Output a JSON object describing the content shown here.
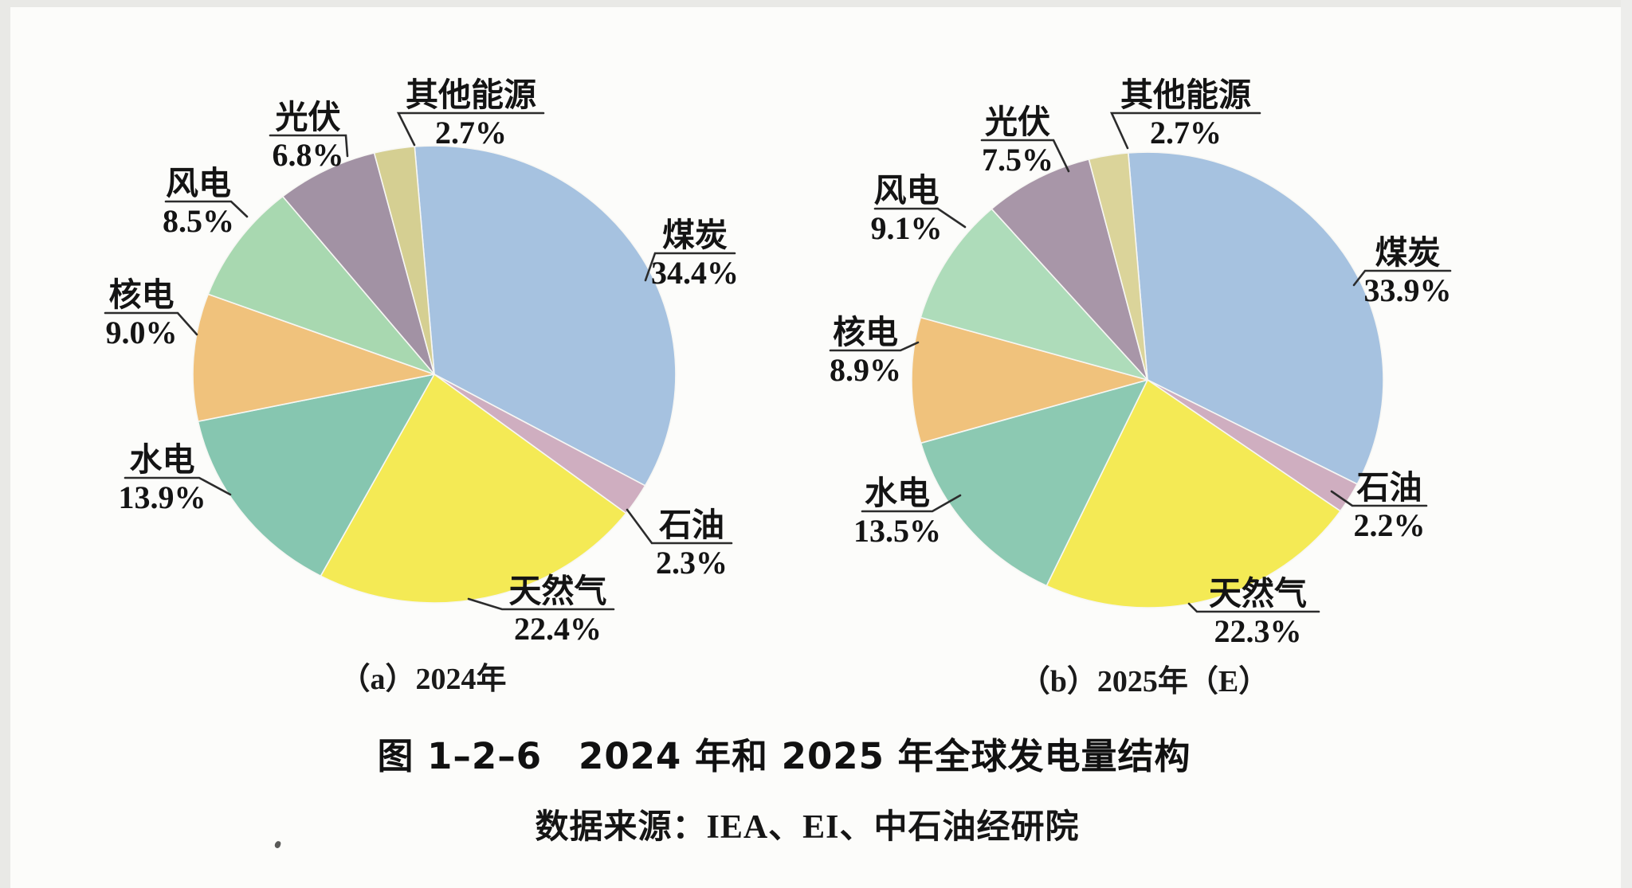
{
  "figure": {
    "title": "图 1–2–6　2024 年和 2025 年全球发电量结构",
    "source": "数据来源：IEA、EI、中石油经研院"
  },
  "chart_data": [
    {
      "type": "pie",
      "caption": "（a）2024年",
      "unit": "%",
      "legend_position": "none",
      "slices": [
        {
          "label": "煤炭",
          "value": 34.4,
          "color": "#a6c2e0"
        },
        {
          "label": "石油",
          "value": 2.3,
          "color": "#cfaec0"
        },
        {
          "label": "天然气",
          "value": 22.4,
          "color": "#f4ea55"
        },
        {
          "label": "水电",
          "value": 13.9,
          "color": "#86c6b0"
        },
        {
          "label": "核电",
          "value": 9.0,
          "color": "#f0c27c"
        },
        {
          "label": "风电",
          "value": 8.5,
          "color": "#a8d8b0"
        },
        {
          "label": "光伏",
          "value": 6.8,
          "color": "#a292a4"
        },
        {
          "label": "其他能源",
          "value": 2.7,
          "color": "#d5cf92"
        }
      ]
    },
    {
      "type": "pie",
      "caption": "（b）2025年（E）",
      "unit": "%",
      "legend_position": "none",
      "slices": [
        {
          "label": "煤炭",
          "value": 33.9,
          "color": "#a6c2e0"
        },
        {
          "label": "石油",
          "value": 2.2,
          "color": "#cfaec0"
        },
        {
          "label": "天然气",
          "value": 22.3,
          "color": "#f4ea55"
        },
        {
          "label": "水电",
          "value": 13.5,
          "color": "#8cc9b2"
        },
        {
          "label": "核电",
          "value": 8.9,
          "color": "#f0c27c"
        },
        {
          "label": "风电",
          "value": 9.1,
          "color": "#aedcba"
        },
        {
          "label": "光伏",
          "value": 7.5,
          "color": "#a896a8"
        },
        {
          "label": "其他能源",
          "value": 2.7,
          "color": "#dbd49a"
        }
      ]
    }
  ]
}
